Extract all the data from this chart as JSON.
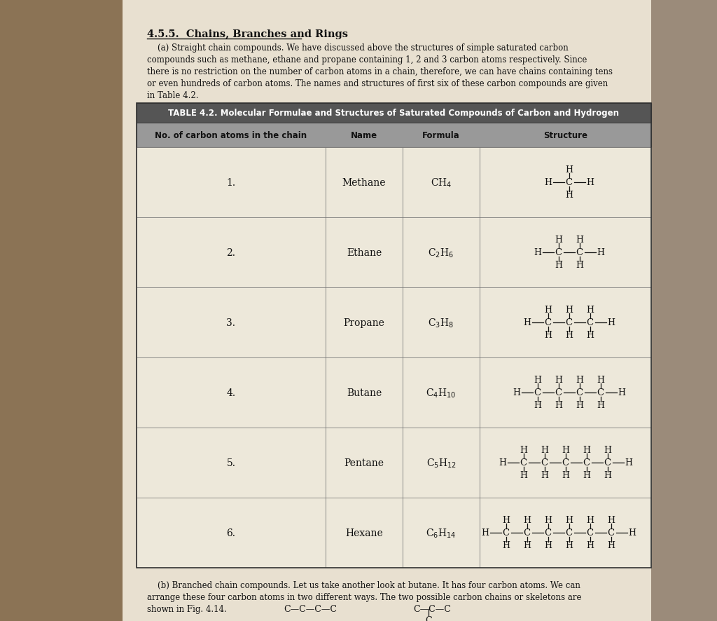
{
  "title": "TABLE 4.2. Molecular Formulae and Structures of Saturated Compounds of Carbon and Hydrogen",
  "section_title": "4.5.5.  Chains, Branches and Rings",
  "para_line1": "    (a) Straight chain compounds. We have discussed above the structures of simple saturated carbon",
  "para_line2": "compounds such as methane, ethane and propane containing 1, 2 and 3 carbon atoms respectively. Since",
  "para_line3": "there is no restriction on the number of carbon atoms in a chain, therefore, we can have chains containing tens",
  "para_line4": "or even hundreds of carbon atoms. The names and structures of first six of these carbon compounds are given",
  "para_line5": "in Table 4.2.",
  "headers": [
    "No. of carbon atoms in the chain",
    "Name",
    "Formula",
    "Structure"
  ],
  "rows": [
    {
      "num": "1.",
      "name": "Methane",
      "formula_main": "CH",
      "formula_sub": "4",
      "carbons": 1
    },
    {
      "num": "2.",
      "name": "Ethane",
      "formula_main": "C",
      "formula_sub1": "2",
      "formula_h": "H",
      "formula_sub2": "6",
      "carbons": 2
    },
    {
      "num": "3.",
      "name": "Propane",
      "formula_main": "C",
      "formula_sub1": "3",
      "formula_h": "H",
      "formula_sub2": "8",
      "carbons": 3
    },
    {
      "num": "4.",
      "name": "Butane",
      "formula_main": "C",
      "formula_sub1": "4",
      "formula_h": "H",
      "formula_sub2": "10",
      "carbons": 4
    },
    {
      "num": "5.",
      "name": "Pentane",
      "formula_main": "C",
      "formula_sub1": "5",
      "formula_h": "H",
      "formula_sub2": "12",
      "carbons": 5
    },
    {
      "num": "6.",
      "name": "Hexane",
      "formula_main": "C",
      "formula_sub1": "6",
      "formula_h": "H",
      "formula_sub2": "14",
      "carbons": 6
    }
  ],
  "formulas": [
    "CH$_4$",
    "C$_2$H$_6$",
    "C$_3$H$_8$",
    "C$_4$H$_{10}$",
    "C$_5$H$_{12}$",
    "C$_6$H$_{14}$"
  ],
  "page_bg": "#b8a898",
  "table_row_bg": "#ede8da",
  "title_bar_bg": "#555555",
  "header_bar_bg": "#999999",
  "fig_width": 10.24,
  "fig_height": 8.87
}
